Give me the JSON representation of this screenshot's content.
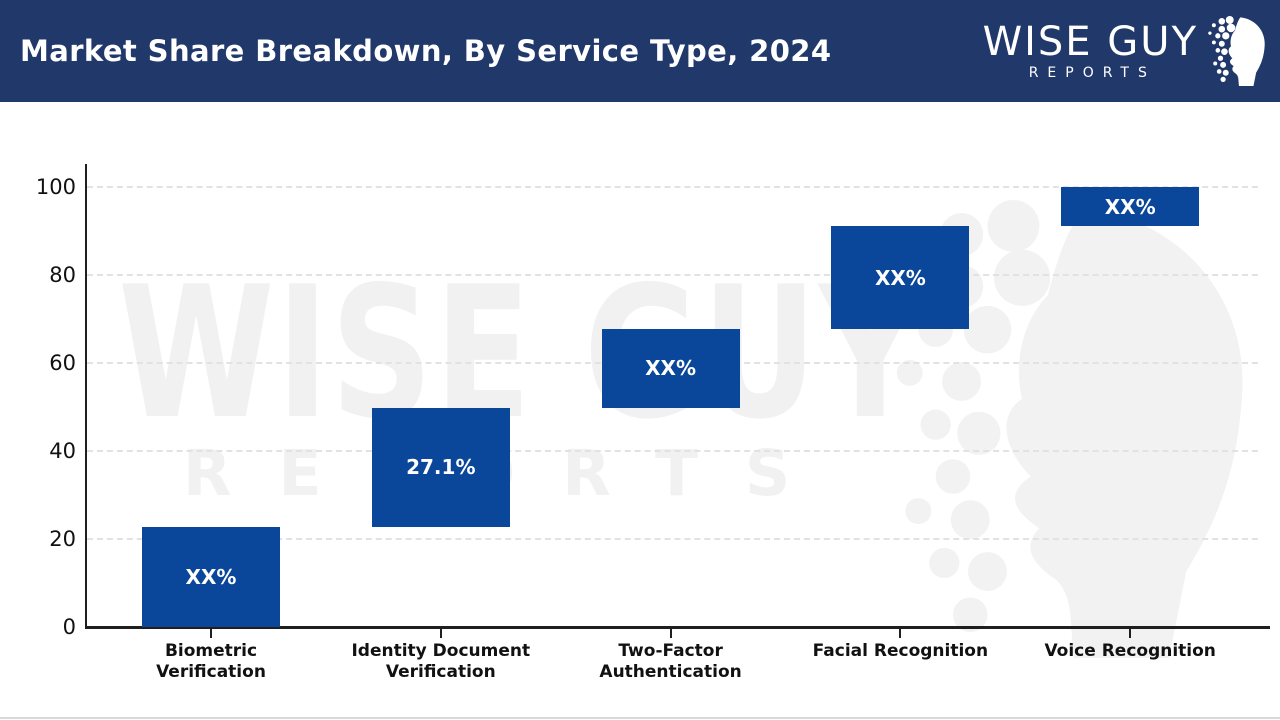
{
  "header": {
    "title": "Market Share Breakdown, By Service Type, 2024",
    "logo": {
      "line1": "WISE GUY",
      "line2": "REPORTS"
    },
    "bg_color": "#21386a"
  },
  "watermark": {
    "line1": "WISE GUY",
    "line2": "REPORTS"
  },
  "chart_data": {
    "type": "bar",
    "subtype": "waterfall",
    "title": "Market Share Breakdown, By Service Type, 2024",
    "categories": [
      "Biometric\nVerification",
      "Identity Document\nVerification",
      "Two-Factor\nAuthentication",
      "Facial Recognition",
      "Voice Recognition"
    ],
    "segments": [
      {
        "label": "XX%",
        "start": 0,
        "end": 22.7,
        "value": 22.7
      },
      {
        "label": "27.1%",
        "start": 22.7,
        "end": 49.8,
        "value": 27.1
      },
      {
        "label": "XX%",
        "start": 49.8,
        "end": 67.7,
        "value": 17.9
      },
      {
        "label": "XX%",
        "start": 67.7,
        "end": 91.1,
        "value": 23.4
      },
      {
        "label": "XX%",
        "start": 91.1,
        "end": 100.0,
        "value": 8.9
      }
    ],
    "y_ticks": [
      0,
      20,
      40,
      60,
      80,
      100
    ],
    "ylim": [
      0,
      105
    ],
    "xlabel": "",
    "ylabel": "",
    "bar_color": "#0a4699",
    "grid": "horizontal-dashed",
    "legend": "none"
  }
}
